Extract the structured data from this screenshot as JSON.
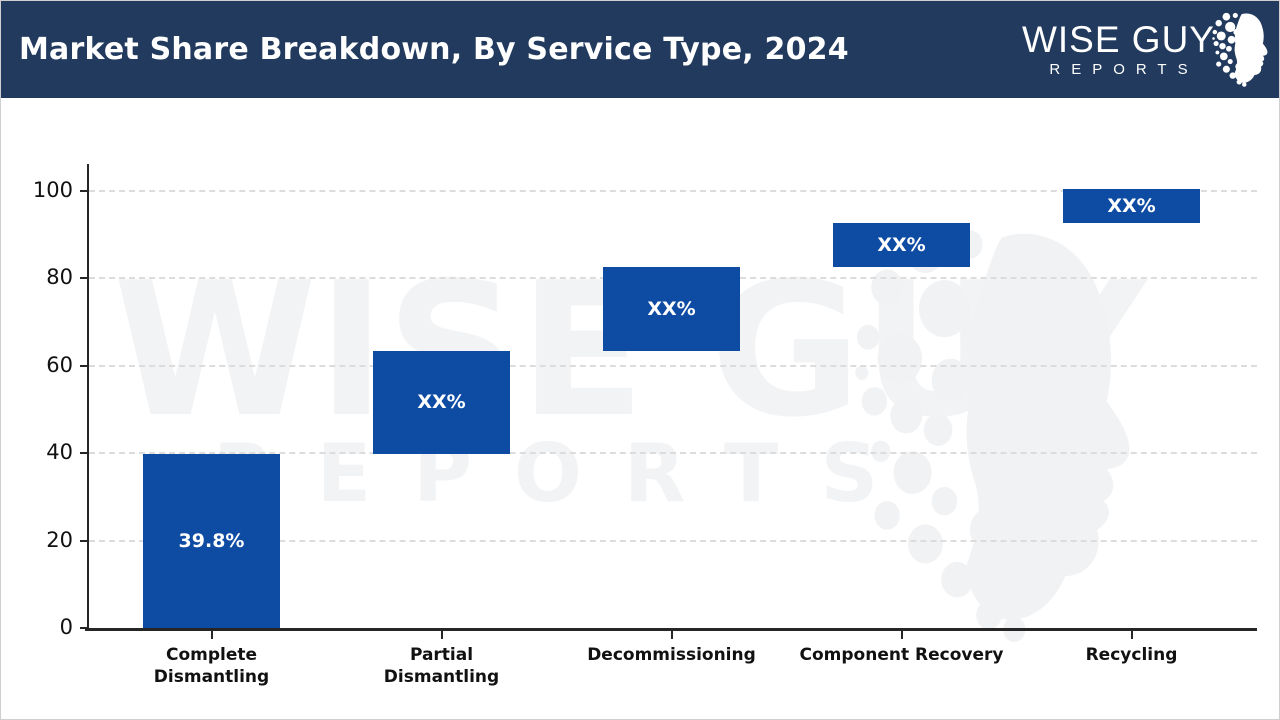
{
  "header": {
    "title": "Market Share Breakdown, By Service Type, 2024",
    "logo": {
      "line1": "WISE GUY",
      "line2": "REPORTS"
    }
  },
  "watermark": {
    "line1": "WISE GUY",
    "line2": "REPORTS"
  },
  "chart_data": {
    "type": "bar",
    "subtype": "waterfall",
    "title": "Market Share Breakdown, By Service Type, 2024",
    "categories": [
      "Complete Dismantling",
      "Partial Dismantling",
      "Decommissioning",
      "Component Recovery",
      "Recycling"
    ],
    "category_lines": [
      [
        "Complete",
        "Dismantling"
      ],
      [
        "Partial",
        "Dismantling"
      ],
      [
        "Decommissioning"
      ],
      [
        "Component Recovery"
      ],
      [
        "Recycling"
      ]
    ],
    "segments": [
      {
        "category": "Complete Dismantling",
        "start": 0,
        "end": 39.8,
        "label": "39.8%"
      },
      {
        "category": "Partial Dismantling",
        "start": 39.8,
        "end": 63.3,
        "label": "XX%"
      },
      {
        "category": "Decommissioning",
        "start": 63.3,
        "end": 82.5,
        "label": "XX%"
      },
      {
        "category": "Component Recovery",
        "start": 82.5,
        "end": 92.6,
        "label": "XX%"
      },
      {
        "category": "Recycling",
        "start": 92.6,
        "end": 100.3,
        "label": "XX%"
      }
    ],
    "y_ticks": [
      0,
      20,
      40,
      60,
      80,
      100
    ],
    "ylim": [
      0,
      105
    ],
    "xlabel": "",
    "ylabel": "",
    "legend": "none",
    "grid": "horizontal-dashed",
    "bar_color": "#0e4ba3",
    "bar_label_color": "#ffffff"
  },
  "colors": {
    "header_bg": "#213a5e",
    "axis": "#262626",
    "gridline": "#dcdcdc",
    "watermark": "#f2f3f5"
  }
}
